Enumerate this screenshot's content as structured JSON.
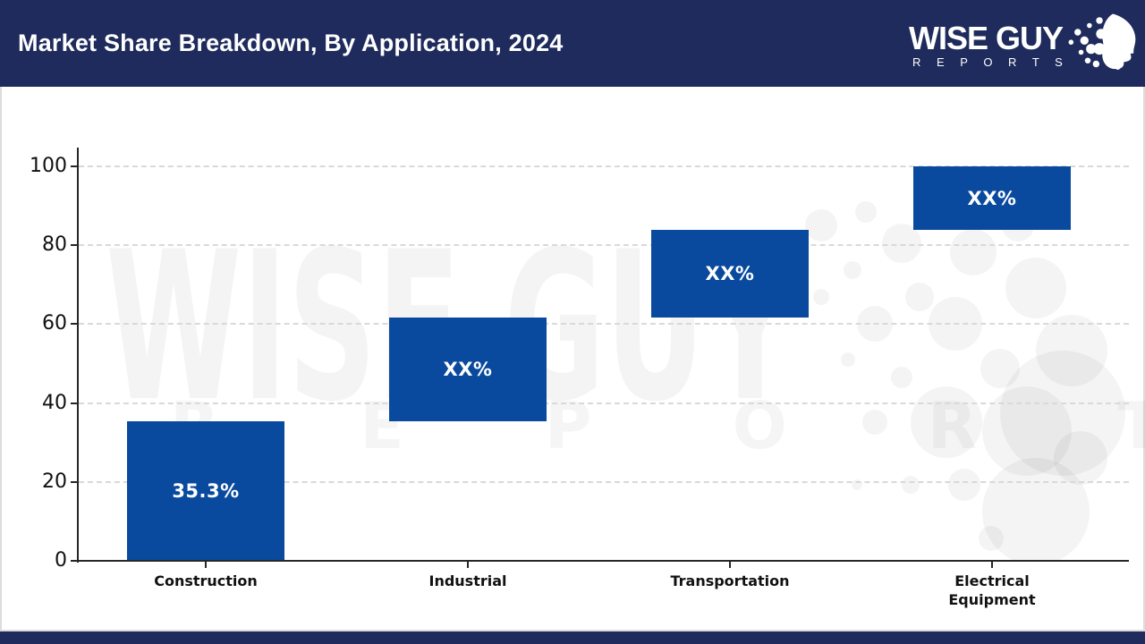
{
  "header": {
    "title": "Market Share Breakdown, By Application, 2024",
    "bg_color": "#1e2b5c",
    "brand": {
      "name": "WISE GUY",
      "subname": "R E P O R T S"
    }
  },
  "watermark": {
    "name": "WISE GUY",
    "subname": "R E P O R T S"
  },
  "chart_data": {
    "type": "bar",
    "subtype": "waterfall",
    "title": "Market Share Breakdown, By Application, 2024",
    "categories": [
      "Construction",
      "Industrial",
      "Transportation",
      "Electrical Equipment"
    ],
    "category_lines": [
      [
        "Construction"
      ],
      [
        "Industrial"
      ],
      [
        "Transportation"
      ],
      [
        "Electrical",
        "Equipment"
      ]
    ],
    "segments": [
      {
        "category": "Construction",
        "start": 0,
        "end": 35.3,
        "label": "35.3%"
      },
      {
        "category": "Industrial",
        "start": 35.3,
        "end": 61.6,
        "label": "XX%"
      },
      {
        "category": "Transportation",
        "start": 61.6,
        "end": 83.9,
        "label": "XX%"
      },
      {
        "category": "Electrical Equipment",
        "start": 83.9,
        "end": 100,
        "label": "XX%"
      }
    ],
    "values_display": [
      "35.3%",
      "XX%",
      "XX%",
      "XX%"
    ],
    "y_ticks": [
      0,
      20,
      40,
      60,
      80,
      100
    ],
    "ylim": [
      0,
      105
    ],
    "bar_color": "#0a4a9e",
    "grid": "horizontal dashed",
    "legend": "none",
    "xlabel": "",
    "ylabel": ""
  },
  "footer": {
    "bg_color": "#1e2b5c"
  }
}
